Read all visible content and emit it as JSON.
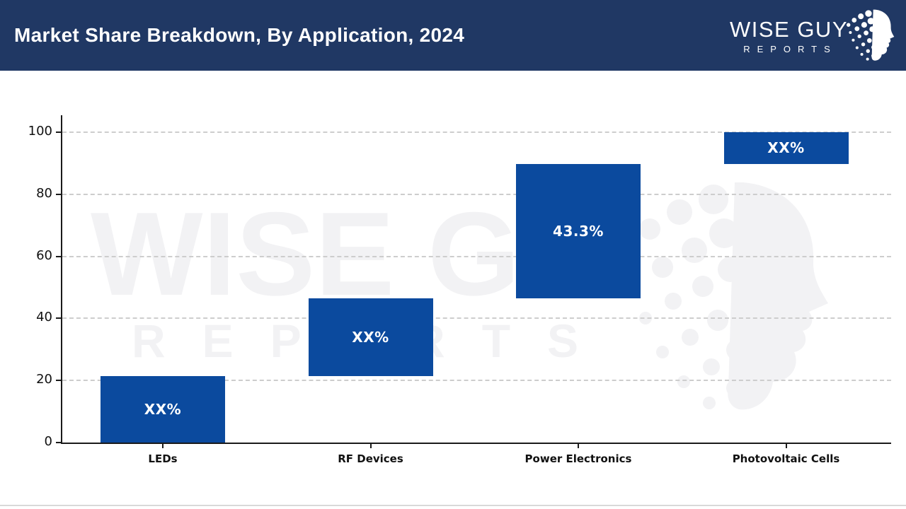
{
  "header": {
    "title": "Market Share Breakdown, By Application, 2024",
    "bg_color": "#203864",
    "logo": {
      "line1": "WISE GUY",
      "line2": "REPORTS"
    }
  },
  "watermark": {
    "line1": "WISE GU",
    "line2": "REPORTS"
  },
  "chart_data": {
    "type": "bar",
    "subtype": "waterfall",
    "title": "Market Share Breakdown, By Application, 2024",
    "categories": [
      "LEDs",
      "RF Devices",
      "Power Electronics",
      "Photovoltaic Cells"
    ],
    "bars": [
      {
        "category": "LEDs",
        "start": 0,
        "end": 21.5,
        "value_label": "XX%"
      },
      {
        "category": "RF Devices",
        "start": 21.5,
        "end": 46.5,
        "value_label": "XX%"
      },
      {
        "category": "Power Electronics",
        "start": 46.5,
        "end": 89.8,
        "value_label": "43.3%"
      },
      {
        "category": "Photovoltaic Cells",
        "start": 89.8,
        "end": 100,
        "value_label": "XX%"
      }
    ],
    "xlabel": "",
    "ylabel": "",
    "ylim": [
      0,
      100
    ],
    "yticks": [
      "0",
      "20",
      "40",
      "60",
      "80",
      "100"
    ],
    "grid": {
      "horizontal": true,
      "style": "dashed",
      "color": "#cdcdcd"
    },
    "legend": "none",
    "bar_color": "#0b4a9e",
    "bar_label_color": "#ffffff",
    "axis_color": "#1a1a1a",
    "header_color": "#203864"
  }
}
